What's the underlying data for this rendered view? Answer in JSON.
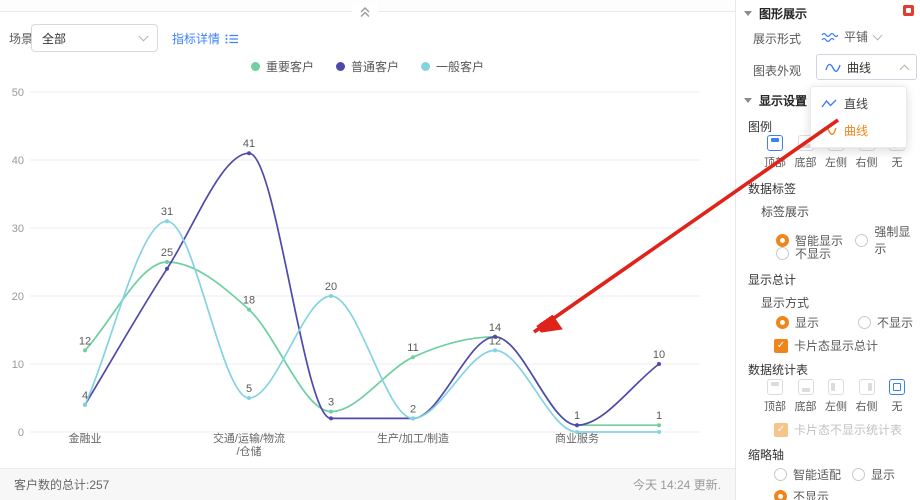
{
  "filters": {
    "scene_label": "场景",
    "scene_value": "全部",
    "indicator_link": "指标详情"
  },
  "chart_data": {
    "type": "line",
    "title": "",
    "curve": "smooth",
    "grid": true,
    "legend_position": "top",
    "ylim": [
      0,
      50
    ],
    "yticks": [
      0,
      10,
      20,
      30,
      40,
      50
    ],
    "x_count": 8,
    "tick_labels": [
      {
        "index": 0,
        "lines": [
          "金融业"
        ]
      },
      {
        "index": 2,
        "lines": [
          "交通/运输/物流",
          "/仓储"
        ]
      },
      {
        "index": 4,
        "lines": [
          "生产/加工/制造"
        ]
      },
      {
        "index": 6,
        "lines": [
          "商业服务"
        ]
      }
    ],
    "series": [
      {
        "name": "重要客户",
        "color": "#6ecfa0",
        "values": [
          12,
          25,
          18,
          3,
          11,
          14,
          1,
          1
        ],
        "labeled_points": [
          0,
          1,
          2,
          3,
          4,
          6,
          7
        ]
      },
      {
        "name": "普通客户",
        "color": "#4f49ab",
        "values": [
          4,
          24,
          41,
          2,
          2,
          14,
          1,
          10
        ],
        "labeled_points": [
          0,
          2,
          4,
          5,
          7
        ]
      },
      {
        "name": "一般客户",
        "color": "#84d3e0",
        "values": [
          4,
          31,
          5,
          20,
          2,
          12,
          0,
          0
        ],
        "labeled_points": [
          1,
          2,
          3,
          5
        ]
      }
    ]
  },
  "footer": {
    "total": "客户数的总计:257",
    "updated": "今天 14:24 更新."
  },
  "panel": {
    "graph_section": "图形展示",
    "display_form_label": "展示形式",
    "display_form_value": "平铺",
    "appearance_label": "图表外观",
    "appearance_value": "曲线",
    "appearance_options": [
      {
        "label": "直线",
        "selected": false
      },
      {
        "label": "曲线",
        "selected": true
      }
    ],
    "display_section": "显示设置",
    "legend_group": "图例",
    "position_options": [
      "顶部",
      "底部",
      "左侧",
      "右侧",
      "无"
    ],
    "legend_position_selected": "顶部",
    "data_label_group": "数据标签",
    "label_display_label": "标签展示",
    "label_options": [
      "智能显示",
      "强制显示",
      "不显示"
    ],
    "label_selected": "智能显示",
    "total_group": "显示总计",
    "display_mode_label": "显示方式",
    "display_mode_options": [
      "显示",
      "不显示"
    ],
    "display_mode_selected": "显示",
    "card_total_checkbox": "卡片态显示总计",
    "card_total_checked": true,
    "stats_table_group": "数据统计表",
    "stats_position_selected": "无",
    "card_stats_checkbox": "卡片态不显示统计表",
    "card_stats_checked": true,
    "axis_group": "缩略轴",
    "axis_options": [
      "智能适配",
      "显示",
      "不显示"
    ],
    "axis_selected": "不显示"
  },
  "annotation": {
    "type": "arrow",
    "color": "#e02318",
    "from": "curve-option",
    "to": "peak-14"
  },
  "colors": {
    "accent_blue": "#3d7ff5",
    "accent_orange": "#f0861a",
    "link_blue": "#4082f5"
  }
}
